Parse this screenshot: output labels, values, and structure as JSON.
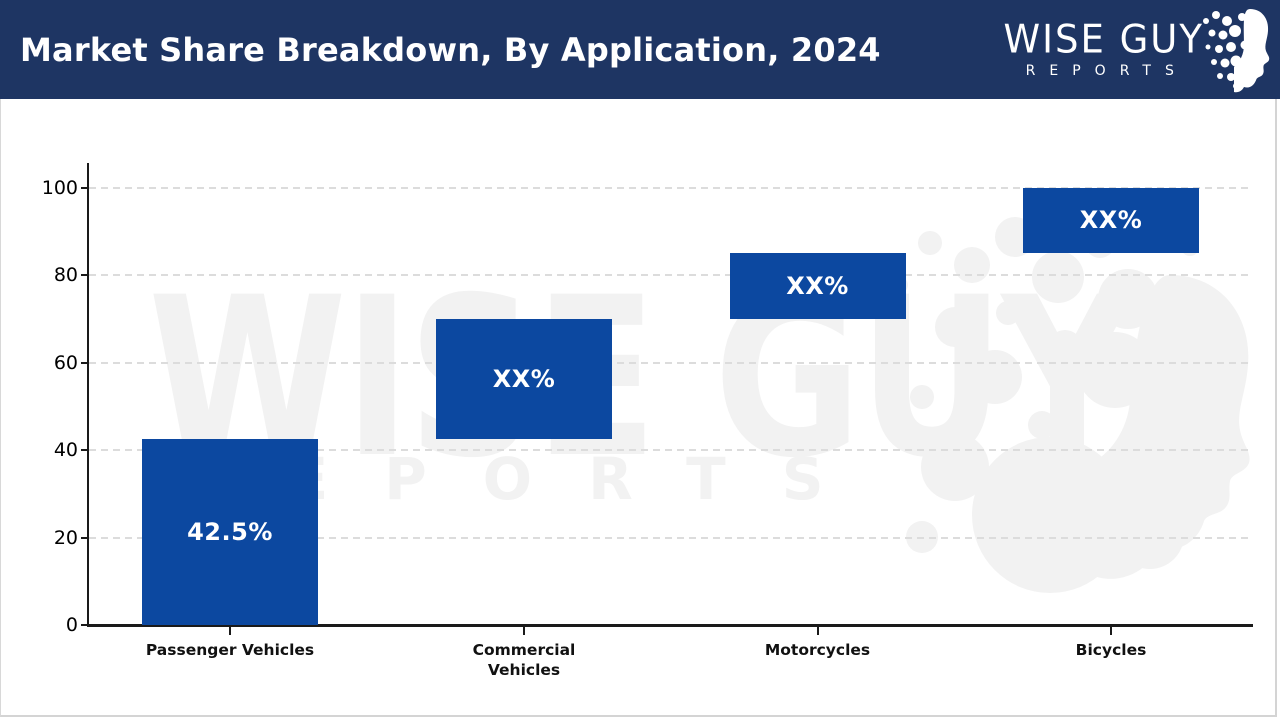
{
  "header": {
    "title": "Market Share Breakdown, By Application, 2024",
    "logo": {
      "line1": "WISE GUY",
      "line2": "REPORTS"
    }
  },
  "watermark": {
    "line1": "WISE GUY",
    "line2": "REPORTS"
  },
  "colors": {
    "header_bg": "#1E3563",
    "bar": "#0C48A0",
    "bar_label": "#FFFFFF",
    "gridline": "#DCDCDC",
    "axis": "#1A1A1A",
    "watermark": "#F2F2F2",
    "edge_hairline": "#D4D4D4"
  },
  "chart_data": {
    "type": "bar",
    "subtype": "floating-waterfall",
    "title": "Market Share Breakdown, By Application, 2024",
    "categories": [
      "Passenger Vehicles",
      "Commercial\nVehicles",
      "Motorcycles",
      "Bicycles"
    ],
    "series": [
      {
        "name": "Market share (%)",
        "segments": [
          {
            "category": "Passenger Vehicles",
            "start": 0,
            "end": 42.5,
            "label": "42.5%"
          },
          {
            "category": "Commercial Vehicles",
            "start": 42.5,
            "end": 70,
            "label": "XX%"
          },
          {
            "category": "Motorcycles",
            "start": 70,
            "end": 85,
            "label": "XX%"
          },
          {
            "category": "Bicycles",
            "start": 85,
            "end": 100,
            "label": "XX%"
          }
        ]
      }
    ],
    "ylim": [
      0,
      100
    ],
    "yticks": [
      0,
      20,
      40,
      60,
      80,
      100
    ],
    "grid": "horizontal dashed",
    "legend": "none",
    "bar_color": "#0C48A0",
    "bar_label_color": "#FFFFFF"
  }
}
